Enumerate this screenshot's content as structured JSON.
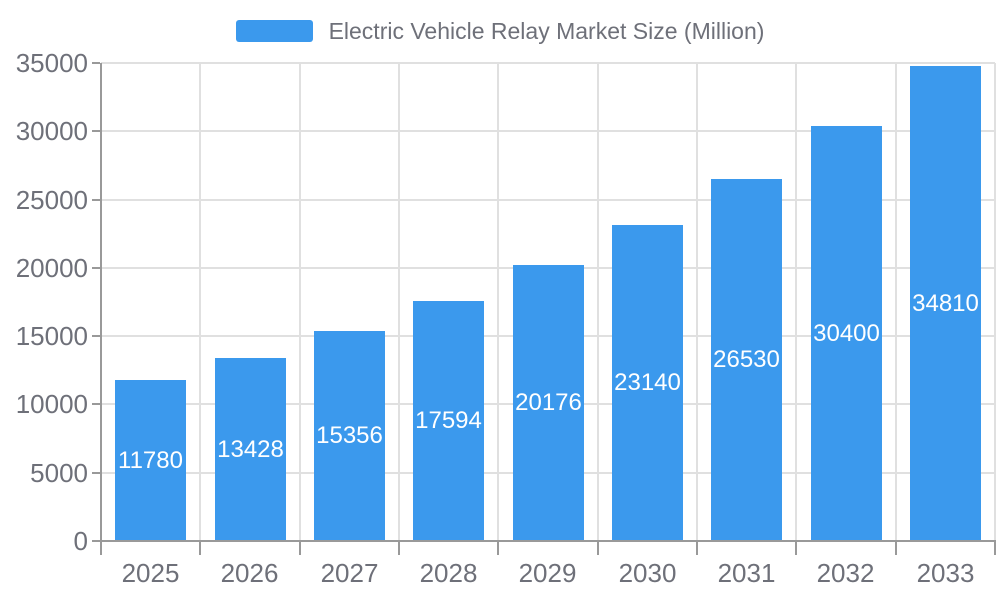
{
  "chart_data": {
    "type": "bar",
    "title": "Electric Vehicle Relay Market Size (Million)",
    "categories": [
      "2025",
      "2026",
      "2027",
      "2028",
      "2029",
      "2030",
      "2031",
      "2032",
      "2033"
    ],
    "values": [
      11780,
      13428,
      15356,
      17594,
      20176,
      23140,
      26530,
      30400,
      34810
    ],
    "xlabel": "",
    "ylabel": "",
    "ylim": [
      0,
      35000
    ],
    "ytick_step": 5000,
    "grid": true,
    "legend_position": "top-center",
    "colors": {
      "bar": "#3b99ed",
      "value_label": "#ffffff",
      "axis_text": "#6e7079",
      "gridline": "#e0e0e0",
      "axis_line": "#999999",
      "background": "#ffffff"
    }
  }
}
